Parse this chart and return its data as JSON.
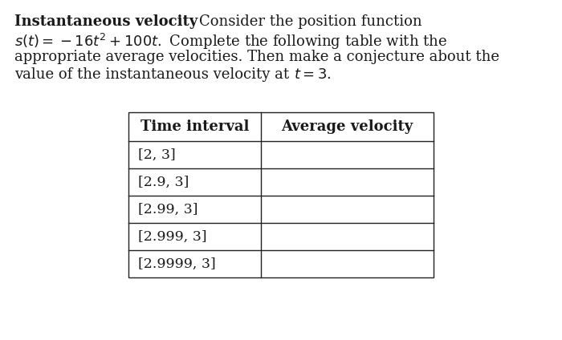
{
  "bold_text": "Instantaneous velocity",
  "normal_text": " Consider the position function",
  "line3": "appropriate average velocities. Then make a conjecture about the",
  "line4a": "value of the instantaneous velocity at ",
  "col_headers": [
    "Time interval",
    "Average velocity"
  ],
  "rows": [
    "[2, 3]",
    "[2.9, 3]",
    "[2.99, 3]",
    "[2.999, 3]",
    "[2.9999, 3]"
  ],
  "background_color": "#ffffff",
  "text_color": "#1a1a1a",
  "table_border_color": "#222222",
  "font_size_text": 13.0,
  "font_size_table_header": 13.0,
  "font_size_table_row": 12.5
}
